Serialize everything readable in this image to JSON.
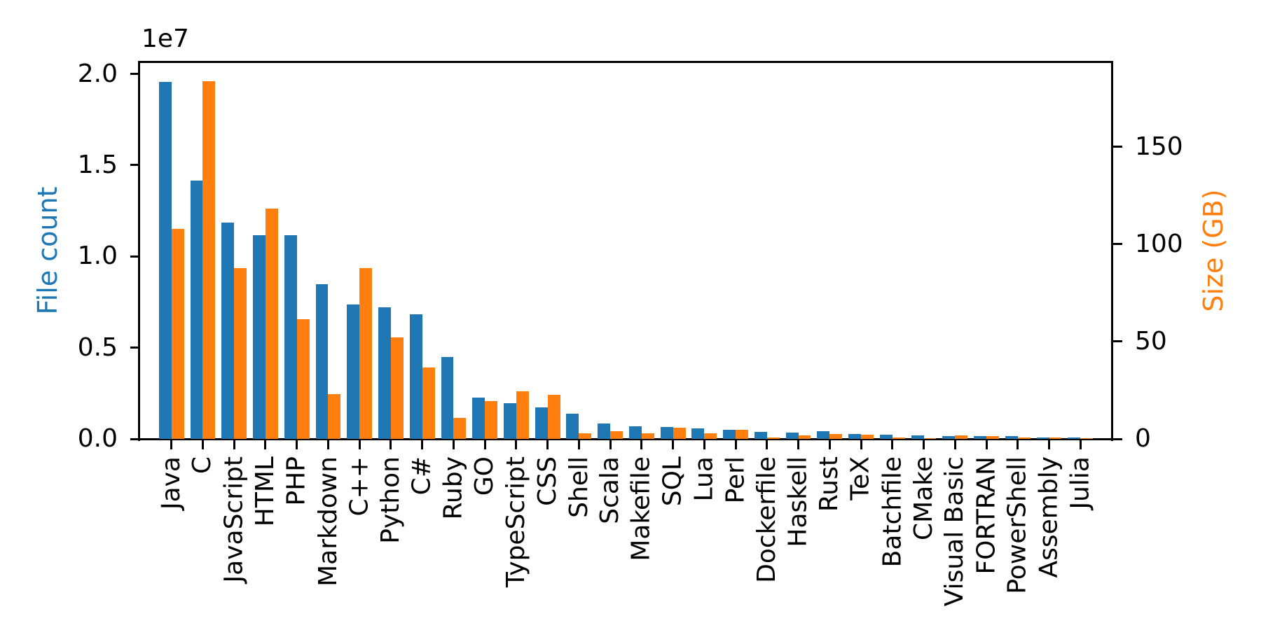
{
  "chart_data": {
    "type": "bar",
    "title": "",
    "categories": [
      "Java",
      "C",
      "JavaScript",
      "HTML",
      "PHP",
      "Markdown",
      "C++",
      "Python",
      "C#",
      "Ruby",
      "GO",
      "TypeScript",
      "CSS",
      "Shell",
      "Scala",
      "Makefile",
      "SQL",
      "Lua",
      "Perl",
      "Dockerfile",
      "Haskell",
      "Rust",
      "TeX",
      "Batchfile",
      "CMake",
      "Visual Basic",
      "FORTRAN",
      "PowerShell",
      "Assembly",
      "Julia"
    ],
    "series": [
      {
        "name": "File count",
        "axis": "left",
        "color": "#1f77b4",
        "values": [
          19548190,
          14143113,
          11839883,
          11178557,
          11177610,
          8464626,
          7380520,
          7226626,
          6811652,
          4473331,
          2265436,
          1940406,
          1734406,
          1385648,
          835755,
          679430,
          656671,
          578554,
          497949,
          366505,
          340623,
          422925,
          251015,
          236945,
          175282,
          155652,
          142038,
          136846,
          82905,
          58317
        ]
      },
      {
        "name": "Size (GB)",
        "axis": "right",
        "color": "#ff7f0e",
        "values": [
          107.7,
          183.83,
          87.82,
          118.12,
          61.41,
          23.09,
          87.73,
          52.03,
          36.83,
          10.95,
          19.28,
          24.59,
          22.67,
          3.01,
          3.87,
          2.92,
          5.67,
          2.81,
          4.7,
          0.71,
          1.85,
          2.68,
          2.15,
          0.7,
          0.54,
          1.91,
          1.62,
          0.69,
          0.78,
          0.29
        ]
      }
    ],
    "left_axis": {
      "label": "File count",
      "color": "#1f77b4",
      "offset_text": "1e7",
      "tick_labels": [
        "0.0",
        "0.5",
        "1.0",
        "1.5",
        "2.0"
      ],
      "tick_values": [
        0,
        5000000,
        10000000,
        15000000,
        20000000
      ],
      "range": [
        0,
        20600000
      ]
    },
    "right_axis": {
      "label": "Size (GB)",
      "color": "#ff7f0e",
      "tick_labels": [
        "0",
        "50",
        "100",
        "150"
      ],
      "tick_values": [
        0,
        50,
        100,
        150
      ],
      "range": [
        0,
        193
      ]
    },
    "x_axis": {
      "tick_rotation": -90
    },
    "legend": "none",
    "grid": false,
    "background": "#ffffff",
    "spine_color": "#000000"
  }
}
